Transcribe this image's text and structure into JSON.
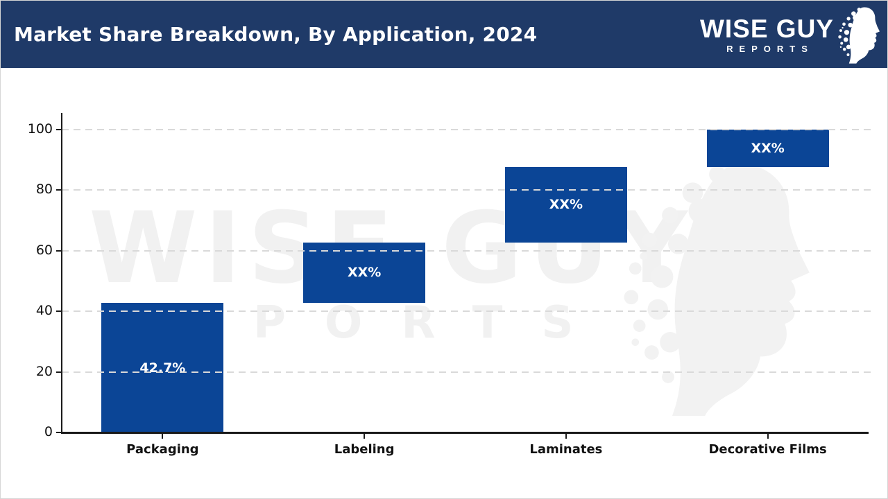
{
  "header": {
    "title": "Market Share Breakdown, By Application, 2024",
    "logo": {
      "line1": "WISE GUY",
      "line2": "REPORTS"
    }
  },
  "watermark": {
    "line1": "WISE GUY",
    "line2": "REPORTS"
  },
  "chart_data": {
    "type": "bar",
    "variant": "waterfall",
    "title": "Market Share Breakdown, By Application, 2024",
    "categories": [
      "Packaging",
      "Labeling",
      "Laminates",
      "Decorative Films"
    ],
    "segments": [
      {
        "category": "Packaging",
        "start": 0,
        "end": 42.7,
        "label": "42.7%"
      },
      {
        "category": "Labeling",
        "start": 42.7,
        "end": 62.8,
        "label": "XX%"
      },
      {
        "category": "Laminates",
        "start": 62.8,
        "end": 87.7,
        "label": "XX%"
      },
      {
        "category": "Decorative Films",
        "start": 87.7,
        "end": 100,
        "label": "XX%"
      }
    ],
    "ylim": [
      0,
      100
    ],
    "yticks": [
      0,
      20,
      40,
      60,
      80,
      100
    ],
    "xlabel": "",
    "ylabel": "",
    "grid": "horizontal-dashed",
    "legend": "none",
    "colors": {
      "bar": "#0b4596",
      "bar_label": "#ffffff",
      "header_bg": "#1f3a68",
      "gridline": "#d9d9d9",
      "axis": "#1a1a1a",
      "watermark": "#f1f1f1"
    }
  }
}
